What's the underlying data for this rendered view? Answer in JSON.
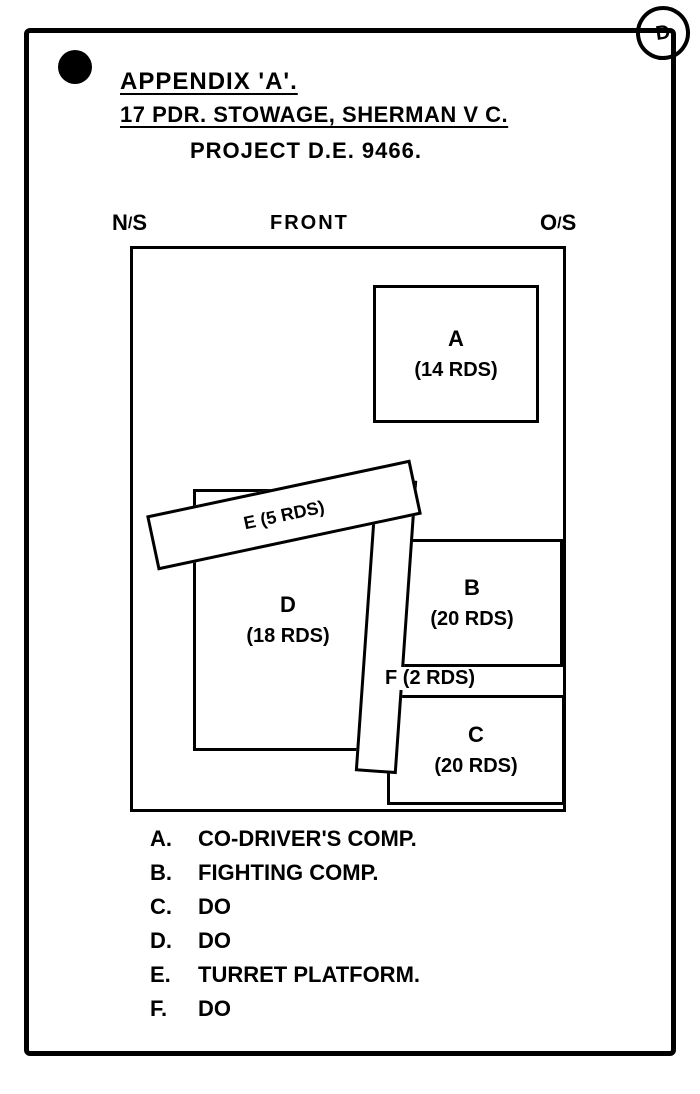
{
  "corner_mark": "D",
  "header": {
    "line1": "APPENDIX 'A'.",
    "line2": "17 PDR. STOWAGE, SHERMAN V C.",
    "line3": "PROJECT D.E. 9466."
  },
  "axis": {
    "ns": "N/S",
    "os": "O/S",
    "front": "FRONT"
  },
  "diagram": {
    "type": "stowage-layout",
    "hull": {
      "border_color": "#000000",
      "background": "#ffffff",
      "line_width": 3
    },
    "boxes": {
      "A": {
        "label": "A",
        "rounds": "(14 RDS)"
      },
      "B": {
        "label": "B",
        "rounds": "(20 RDS)"
      },
      "C": {
        "label": "C",
        "rounds": "(20 RDS)"
      },
      "D": {
        "label": "D",
        "rounds": "(18 RDS)"
      },
      "E": {
        "label": "E (5 RDS)"
      },
      "F": {
        "label": "F",
        "rounds": "(2 RDS)"
      }
    },
    "style": {
      "line_color": "#000000",
      "line_width": 3,
      "font_family": "hand-lettered",
      "background": "#ffffff"
    }
  },
  "legend": [
    {
      "key": "A.",
      "value": "CO-DRIVER'S COMP."
    },
    {
      "key": "B.",
      "value": "FIGHTING COMP."
    },
    {
      "key": "C.",
      "value": "DO"
    },
    {
      "key": "D.",
      "value": "DO"
    },
    {
      "key": "E.",
      "value": "TURRET PLATFORM."
    },
    {
      "key": "F.",
      "value": "DO"
    }
  ]
}
